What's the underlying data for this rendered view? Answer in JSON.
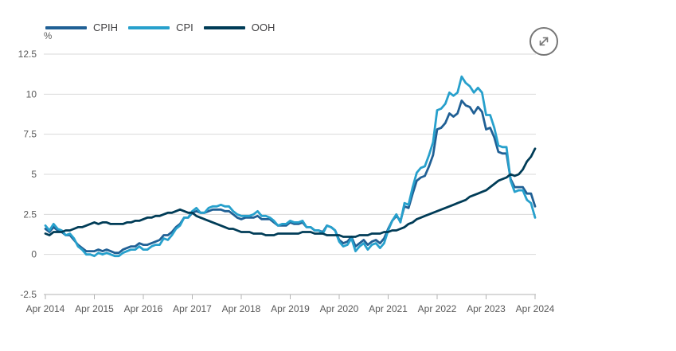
{
  "chart": {
    "unit_label": "%",
    "legend": [
      {
        "label": "CPIH",
        "color": "#206095"
      },
      {
        "label": "CPI",
        "color": "#27A0CC"
      },
      {
        "label": "OOH",
        "color": "#003C57"
      }
    ],
    "expand_button": {
      "icon": "expand-diagonal-arrow-icon",
      "color": "#767676"
    },
    "colors": {
      "grid": "#d9d9d9",
      "axis": "#b3b3b3",
      "tick_text": "#595959",
      "legend_text": "#414042",
      "background": "#ffffff"
    }
  },
  "chart_data": {
    "type": "line",
    "title": "",
    "ylabel": "%",
    "ylim": [
      -2.5,
      12.5
    ],
    "yticks": [
      -2.5,
      0,
      2.5,
      5,
      7.5,
      10,
      12.5
    ],
    "ytick_labels": [
      "-2.5",
      "0",
      "2.5",
      "5",
      "7.5",
      "10",
      "12.5"
    ],
    "x_frequency": "monthly",
    "x_start": "Apr 2014",
    "x_end": "Apr 2024",
    "xtick_labels": [
      "Apr 2014",
      "Apr 2015",
      "Apr 2016",
      "Apr 2017",
      "Apr 2018",
      "Apr 2019",
      "Apr 2020",
      "Apr 2021",
      "Apr 2022",
      "Apr 2023",
      "Apr 2024"
    ],
    "xtick_month_indices": [
      0,
      12,
      24,
      36,
      48,
      60,
      72,
      84,
      96,
      108,
      120
    ],
    "grid": true,
    "legend_position": "top-left",
    "series": [
      {
        "name": "CPIH",
        "color": "#206095",
        "values": [
          1.6,
          1.4,
          1.7,
          1.5,
          1.4,
          1.2,
          1.2,
          0.9,
          0.6,
          0.4,
          0.2,
          0.2,
          0.2,
          0.3,
          0.2,
          0.3,
          0.2,
          0.1,
          0.1,
          0.3,
          0.4,
          0.5,
          0.5,
          0.7,
          0.6,
          0.6,
          0.7,
          0.8,
          0.9,
          1.2,
          1.2,
          1.4,
          1.7,
          1.9,
          2.3,
          2.3,
          2.6,
          2.7,
          2.6,
          2.6,
          2.7,
          2.8,
          2.8,
          2.8,
          2.7,
          2.7,
          2.5,
          2.3,
          2.2,
          2.3,
          2.3,
          2.3,
          2.4,
          2.2,
          2.2,
          2.2,
          2.0,
          1.8,
          1.8,
          1.8,
          2.0,
          1.9,
          1.9,
          2.0,
          1.7,
          1.7,
          1.5,
          1.5,
          1.4,
          1.8,
          1.7,
          1.5,
          0.9,
          0.7,
          0.8,
          1.1,
          0.5,
          0.7,
          0.9,
          0.6,
          0.8,
          0.9,
          0.7,
          1.0,
          1.6,
          2.1,
          2.4,
          2.1,
          3.0,
          2.9,
          3.8,
          4.6,
          4.8,
          4.9,
          5.5,
          6.2,
          7.8,
          7.9,
          8.2,
          8.8,
          8.6,
          8.8,
          9.6,
          9.3,
          9.2,
          8.8,
          9.2,
          8.9,
          7.8,
          7.9,
          7.3,
          6.4,
          6.3,
          6.3,
          4.7,
          4.2,
          4.2,
          4.2,
          3.8,
          3.8,
          3.0
        ]
      },
      {
        "name": "CPI",
        "color": "#27A0CC",
        "values": [
          1.8,
          1.5,
          1.9,
          1.6,
          1.5,
          1.2,
          1.3,
          1.0,
          0.5,
          0.3,
          0.0,
          0.0,
          -0.1,
          0.1,
          0.0,
          0.1,
          0.0,
          -0.1,
          -0.1,
          0.1,
          0.2,
          0.3,
          0.3,
          0.5,
          0.3,
          0.3,
          0.5,
          0.6,
          0.6,
          1.0,
          0.9,
          1.2,
          1.6,
          1.8,
          2.3,
          2.3,
          2.7,
          2.9,
          2.6,
          2.6,
          2.9,
          3.0,
          3.0,
          3.1,
          3.0,
          3.0,
          2.7,
          2.5,
          2.4,
          2.4,
          2.4,
          2.5,
          2.7,
          2.4,
          2.4,
          2.3,
          2.1,
          1.8,
          1.9,
          1.9,
          2.1,
          2.0,
          2.0,
          2.1,
          1.7,
          1.7,
          1.5,
          1.5,
          1.3,
          1.8,
          1.7,
          1.5,
          0.8,
          0.5,
          0.6,
          1.0,
          0.2,
          0.5,
          0.7,
          0.3,
          0.6,
          0.7,
          0.4,
          0.7,
          1.5,
          2.1,
          2.5,
          2.0,
          3.2,
          3.1,
          4.2,
          5.1,
          5.4,
          5.5,
          6.2,
          7.0,
          9.0,
          9.1,
          9.4,
          10.1,
          9.9,
          10.1,
          11.1,
          10.7,
          10.5,
          10.1,
          10.4,
          10.1,
          8.7,
          8.7,
          7.9,
          6.8,
          6.7,
          6.7,
          4.6,
          3.9,
          4.0,
          4.0,
          3.4,
          3.2,
          2.3
        ]
      },
      {
        "name": "OOH",
        "color": "#003C57",
        "values": [
          1.3,
          1.2,
          1.4,
          1.4,
          1.4,
          1.5,
          1.5,
          1.6,
          1.7,
          1.7,
          1.8,
          1.9,
          2.0,
          1.9,
          2.0,
          2.0,
          1.9,
          1.9,
          1.9,
          1.9,
          2.0,
          2.0,
          2.1,
          2.1,
          2.2,
          2.3,
          2.3,
          2.4,
          2.4,
          2.5,
          2.6,
          2.6,
          2.7,
          2.8,
          2.7,
          2.6,
          2.6,
          2.4,
          2.3,
          2.2,
          2.1,
          2.0,
          1.9,
          1.8,
          1.7,
          1.6,
          1.6,
          1.5,
          1.4,
          1.4,
          1.4,
          1.3,
          1.3,
          1.3,
          1.2,
          1.2,
          1.2,
          1.3,
          1.3,
          1.3,
          1.3,
          1.3,
          1.3,
          1.4,
          1.4,
          1.4,
          1.3,
          1.3,
          1.3,
          1.2,
          1.2,
          1.2,
          1.2,
          1.1,
          1.1,
          1.1,
          1.1,
          1.2,
          1.2,
          1.2,
          1.3,
          1.3,
          1.3,
          1.4,
          1.4,
          1.5,
          1.5,
          1.6,
          1.7,
          1.9,
          2.0,
          2.2,
          2.3,
          2.4,
          2.5,
          2.6,
          2.7,
          2.8,
          2.9,
          3.0,
          3.1,
          3.2,
          3.3,
          3.4,
          3.6,
          3.7,
          3.8,
          3.9,
          4.0,
          4.2,
          4.4,
          4.6,
          4.7,
          4.8,
          5.0,
          4.9,
          5.0,
          5.3,
          5.8,
          6.1,
          6.6
        ]
      }
    ]
  }
}
